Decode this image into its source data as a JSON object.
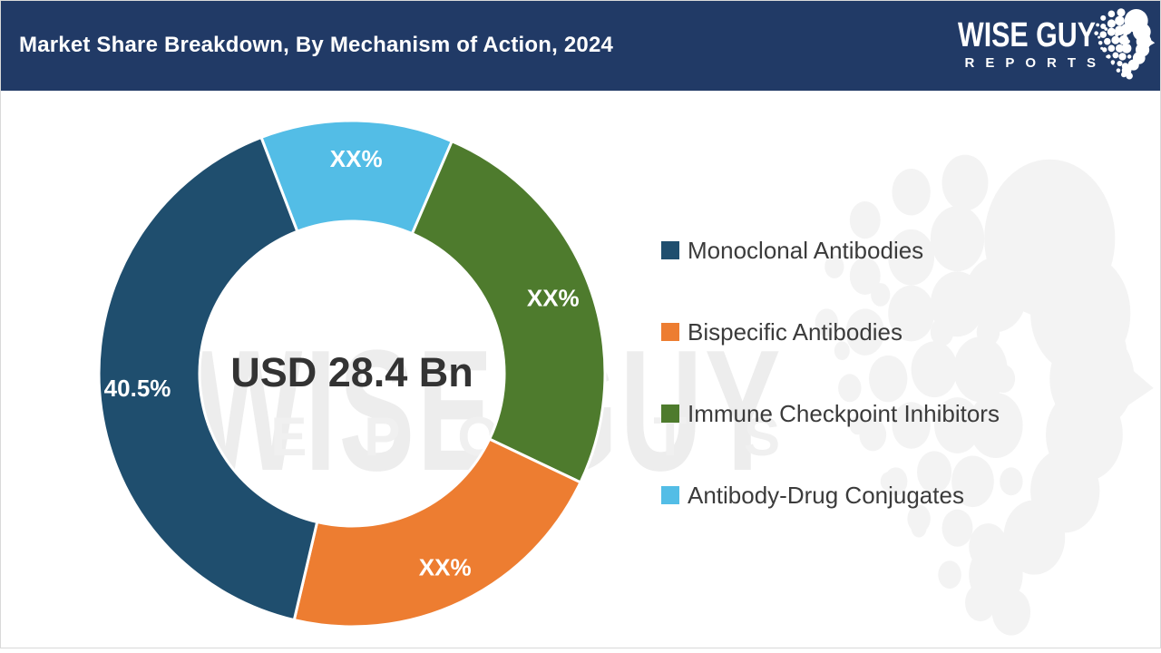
{
  "header": {
    "title": "Market Share Breakdown, By Mechanism of Action, 2024",
    "logo": {
      "primary": "WISE GUY",
      "secondary": "REPORTS"
    }
  },
  "watermark": {
    "primary": "WISE GUY",
    "secondary": "REPORTS"
  },
  "chart_data": {
    "type": "pie",
    "subtype": "donut",
    "title": "Market Share Breakdown, By Mechanism of Action, 2024",
    "center_label": "USD 28.4 Bn",
    "start_angle_deg": -21,
    "direction": "clockwise",
    "segments": [
      {
        "name": "Antibody-Drug Conjugates",
        "value_pct": 12.3,
        "label": "XX%",
        "color": "#53BDE6"
      },
      {
        "name": "Immune Checkpoint Inhibitors",
        "value_pct": 25.6,
        "label": "XX%",
        "color": "#4E7B2D"
      },
      {
        "name": "Bispecific Antibodies",
        "value_pct": 21.6,
        "label": "XX%",
        "color": "#ED7D31"
      },
      {
        "name": "Monoclonal Antibodies",
        "value_pct": 40.5,
        "label": "40.5%",
        "color": "#1F4E6E"
      }
    ],
    "legend": {
      "position": "right",
      "items": [
        {
          "label": "Monoclonal Antibodies",
          "color": "#1F4E6E"
        },
        {
          "label": "Bispecific Antibodies",
          "color": "#ED7D31"
        },
        {
          "label": "Immune Checkpoint Inhibitors",
          "color": "#4E7B2D"
        },
        {
          "label": "Antibody-Drug Conjugates",
          "color": "#53BDE6"
        }
      ]
    }
  }
}
